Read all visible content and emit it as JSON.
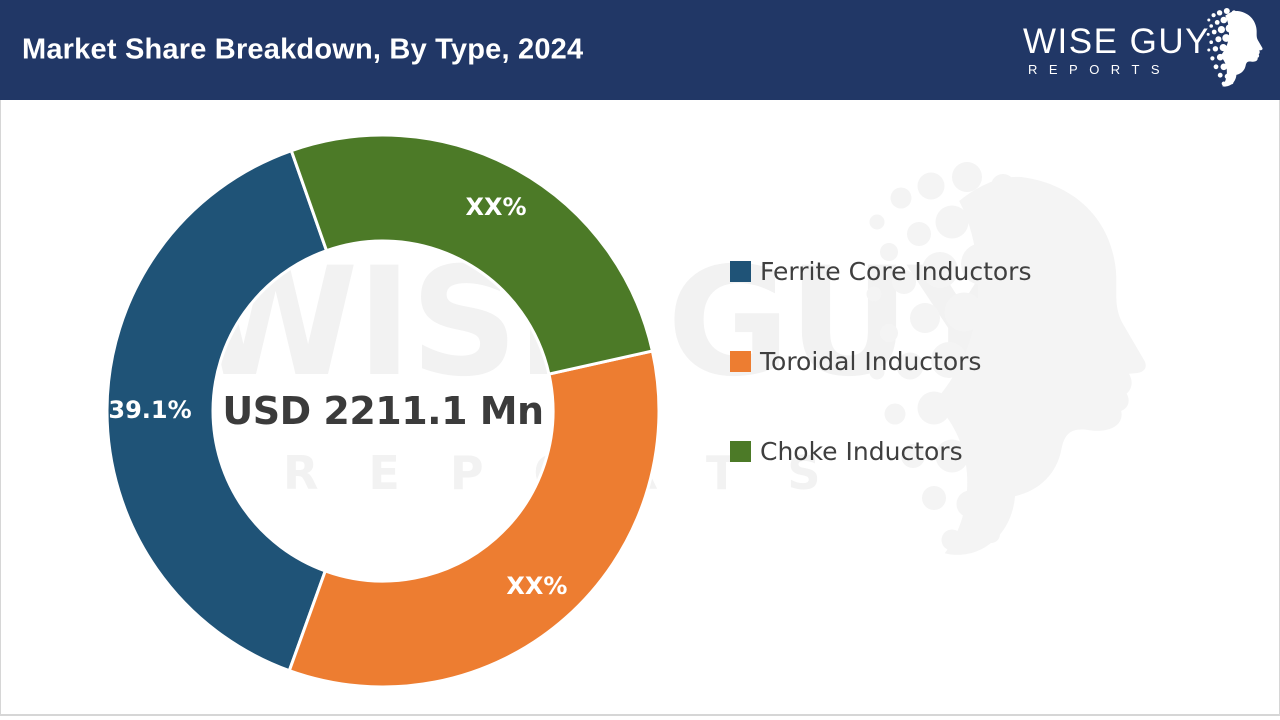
{
  "header": {
    "title": "Market Share Breakdown, By Type, 2024",
    "logo": {
      "line1": "WISE GUY",
      "line2": "REPORTS"
    }
  },
  "watermark": {
    "line1": "WISE GUY",
    "line2": "REPORTS"
  },
  "chart_data": {
    "type": "donut",
    "title": "Market Share Breakdown, By Type, 2024",
    "center_label": "USD 2211.1 Mn",
    "legend_position": "right",
    "start_angle_deg": 109.4,
    "direction": "counterclockwise",
    "segments": [
      {
        "name": "Ferrite Core Inductors",
        "label": "39.1%",
        "value_pct": 39.1,
        "color": "#1f5377"
      },
      {
        "name": "Toroidal Inductors",
        "label": "XX%",
        "value_pct": 34.0,
        "color": "#ed7d31"
      },
      {
        "name": "Choke Inductors",
        "label": "XX%",
        "value_pct": 26.9,
        "color": "#4c7a27"
      }
    ]
  }
}
